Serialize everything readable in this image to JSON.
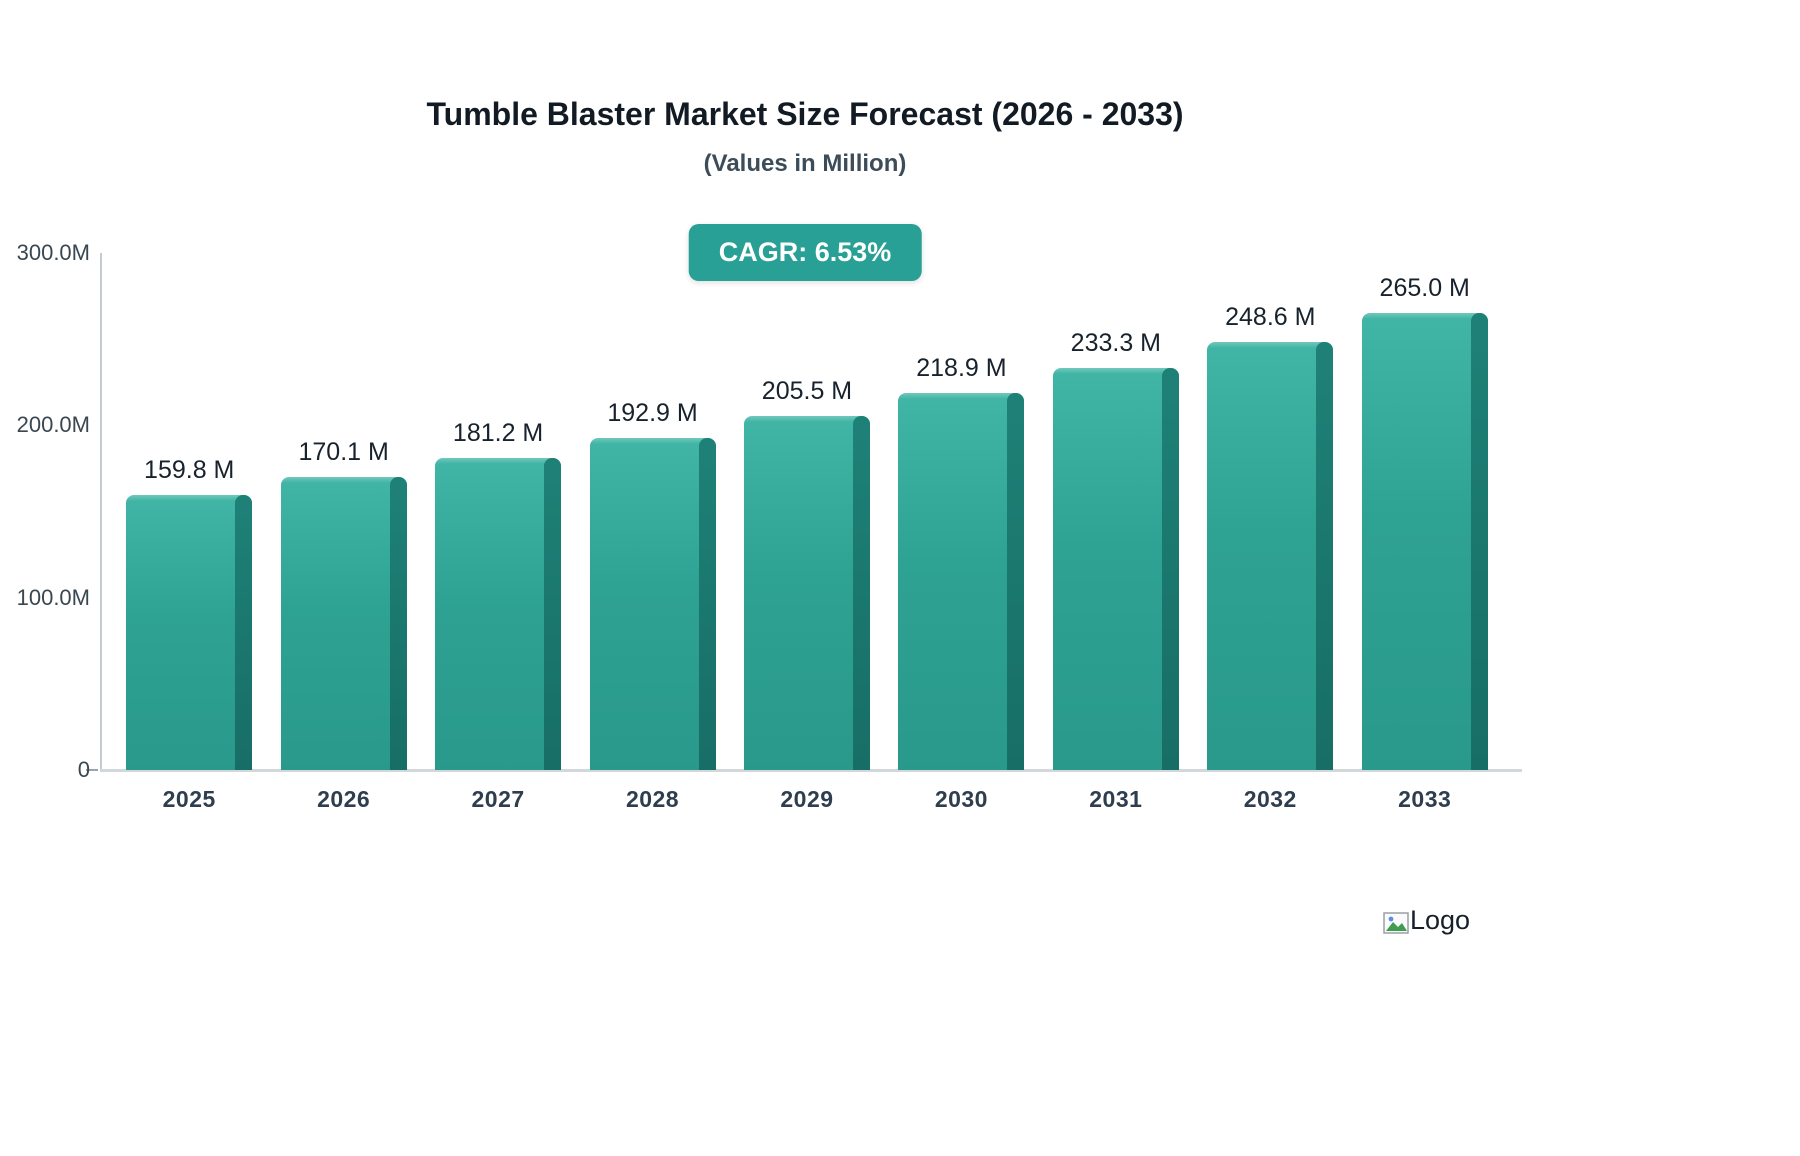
{
  "header": {
    "title": "Tumble Blaster Market Size Forecast (2026 - 2033)",
    "subtitle": "(Values in Million)",
    "cagr_label": "CAGR: 6.53%"
  },
  "chart_data": {
    "type": "bar",
    "title": "Tumble Blaster Market Size Forecast (2026 - 2033)",
    "subtitle": "(Values in Million)",
    "categories": [
      "2025",
      "2026",
      "2027",
      "2028",
      "2029",
      "2030",
      "2031",
      "2032",
      "2033"
    ],
    "values": [
      159.8,
      170.1,
      181.2,
      192.9,
      205.5,
      218.9,
      233.3,
      248.6,
      265.0
    ],
    "value_labels": [
      "159.8 M",
      "170.1 M",
      "181.2 M",
      "192.9 M",
      "205.5 M",
      "218.9 M",
      "233.3 M",
      "248.6 M",
      "265.0 M"
    ],
    "cagr": "6.53%",
    "xlabel": "",
    "ylabel": "",
    "ylim": [
      0,
      300
    ],
    "y_ticks": [
      {
        "value": 300,
        "label": "300.0M"
      },
      {
        "value": 200,
        "label": "200.0M"
      },
      {
        "value": 100,
        "label": "100.0M"
      },
      {
        "value": 0,
        "label": "0"
      }
    ],
    "grid": false,
    "legend_position": "none",
    "bar_color": "#2ea293",
    "bar_side_color": "#176e66"
  },
  "footer": {
    "logo_text": "Logo"
  }
}
